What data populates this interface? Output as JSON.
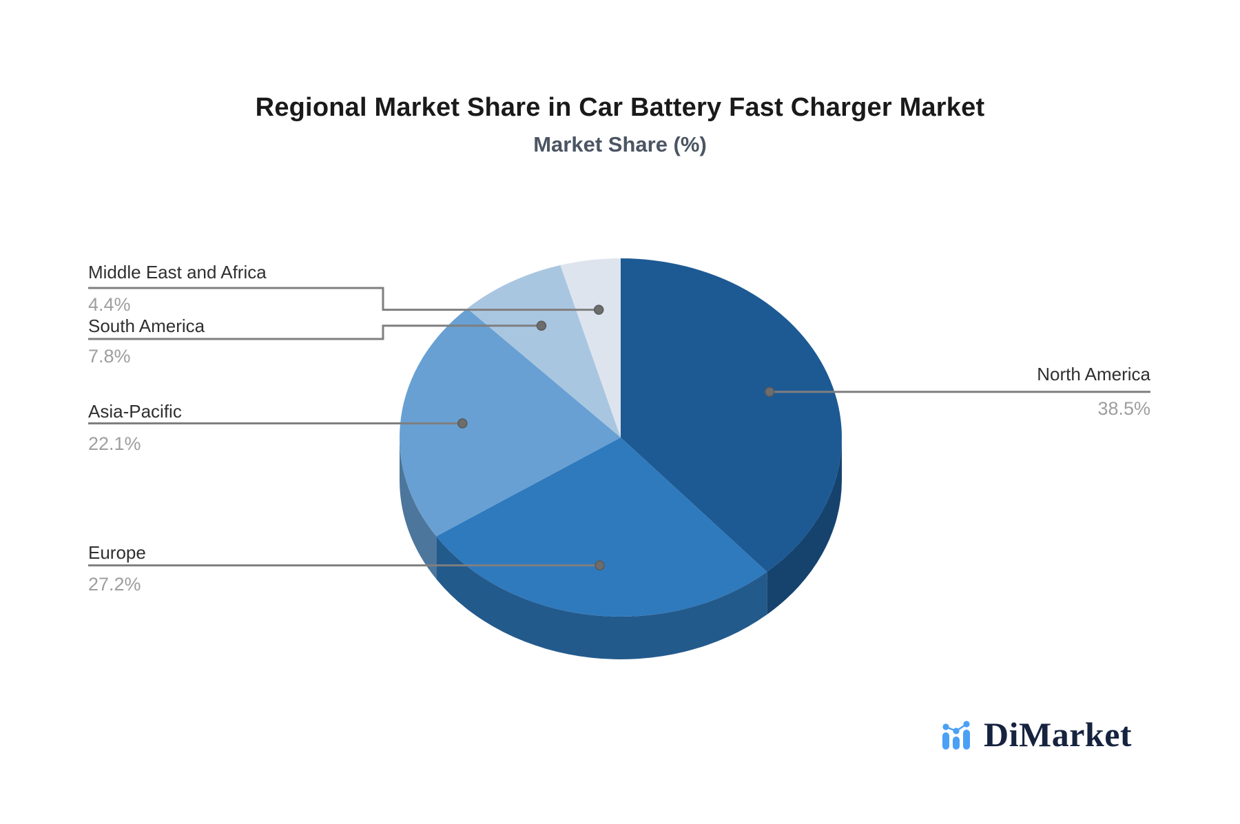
{
  "title": "Regional Market Share in Car Battery Fast Charger Market",
  "subtitle": "Market Share (%)",
  "brand": {
    "name": "DiMarket",
    "icon": "bar-chart-logo-icon",
    "icon_color": "#4aa0f5",
    "text_color": "#16233f"
  },
  "style": {
    "leader_line_color": "#7f7f7f",
    "leader_dot_color": "#6d6d6d",
    "label_text_color": "#2f2f2f",
    "value_text_color": "#9e9e9e"
  },
  "chart_data": {
    "type": "pie",
    "style": "3d-pie",
    "title": "Regional Market Share in Car Battery Fast Charger Market",
    "subtitle": "Market Share (%)",
    "unit": "%",
    "start_angle": "12 o'clock",
    "direction": "clockwise",
    "legend_position": "callout-labels",
    "slices": [
      {
        "label": "North America",
        "value": 38.5,
        "display": "38.5%",
        "color": "#1d5a94"
      },
      {
        "label": "Europe",
        "value": 27.2,
        "display": "27.2%",
        "color": "#2f7abd"
      },
      {
        "label": "Asia-Pacific",
        "value": 22.1,
        "display": "22.1%",
        "color": "#68a0d3"
      },
      {
        "label": "South America",
        "value": 7.8,
        "display": "7.8%",
        "color": "#a9c6e1"
      },
      {
        "label": "Middle East and Africa",
        "value": 4.4,
        "display": "4.4%",
        "color": "#dee4ee"
      }
    ]
  }
}
